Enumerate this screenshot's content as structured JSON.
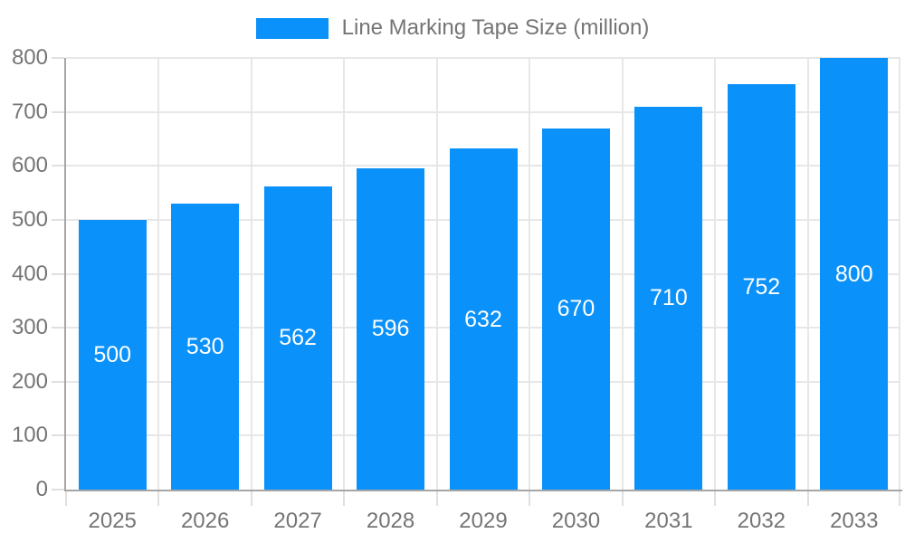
{
  "legend": {
    "label": "Line Marking Tape Size (million)"
  },
  "chart_data": {
    "type": "bar",
    "title": "Line Marking Tape Size (million)",
    "categories": [
      "2025",
      "2026",
      "2027",
      "2028",
      "2029",
      "2030",
      "2031",
      "2032",
      "2033"
    ],
    "values": [
      500,
      530,
      562,
      596,
      632,
      670,
      710,
      752,
      800
    ],
    "xlabel": "",
    "ylabel": "",
    "ylim": [
      0,
      800
    ],
    "yticks": [
      0,
      100,
      200,
      300,
      400,
      500,
      600,
      700,
      800
    ],
    "grid": true,
    "legend_position": "top-center",
    "value_label_position": "inside-middle",
    "colors": {
      "bar": "#0a91fa",
      "value_label": "#ffffff",
      "axis_line": "#a6a6a6",
      "grid_line": "#e7e7e7",
      "tick_line": "#e0e0e0",
      "axis_text": "#757575",
      "legend_text": "#757575",
      "background": "#ffffff"
    }
  }
}
